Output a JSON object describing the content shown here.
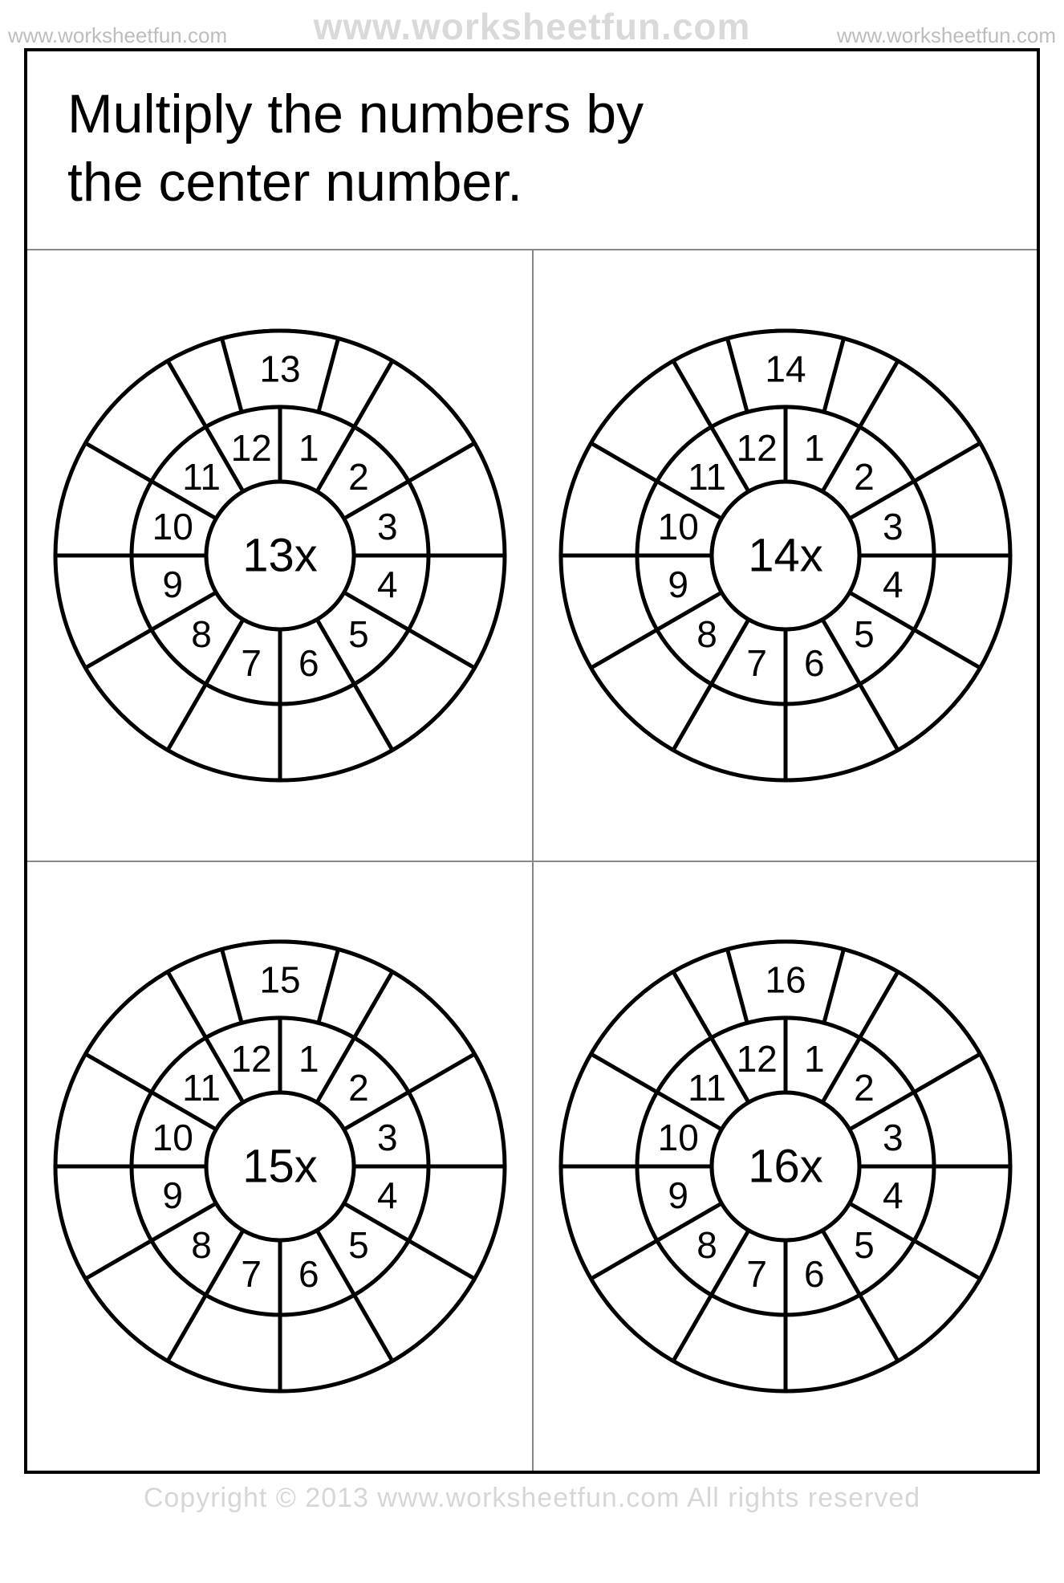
{
  "watermark": {
    "left": "www.worksheetfun.com",
    "center": "www.worksheetfun.com",
    "right": "www.worksheetfun.com",
    "footer": "Copyright © 2013 www.worksheetfun.com All rights reserved"
  },
  "title": {
    "line1": "Multiply the numbers by",
    "line2": "the center number."
  },
  "wheel_style": {
    "outer_radius": 280,
    "mid_radius": 185,
    "inner_radius": 92,
    "stroke": "#000000",
    "stroke_width": 5,
    "segments": 12,
    "inner_fontsize": 46,
    "center_fontsize": 58,
    "start_label_fontsize": 46,
    "svg_size": 600,
    "background": "#ffffff"
  },
  "wheels": [
    {
      "center_label": "13x",
      "start_label": "13",
      "inner_numbers": [
        "1",
        "2",
        "3",
        "4",
        "5",
        "6",
        "7",
        "8",
        "9",
        "10",
        "11",
        "12"
      ]
    },
    {
      "center_label": "14x",
      "start_label": "14",
      "inner_numbers": [
        "1",
        "2",
        "3",
        "4",
        "5",
        "6",
        "7",
        "8",
        "9",
        "10",
        "11",
        "12"
      ]
    },
    {
      "center_label": "15x",
      "start_label": "15",
      "inner_numbers": [
        "1",
        "2",
        "3",
        "4",
        "5",
        "6",
        "7",
        "8",
        "9",
        "10",
        "11",
        "12"
      ]
    },
    {
      "center_label": "16x",
      "start_label": "16",
      "inner_numbers": [
        "1",
        "2",
        "3",
        "4",
        "5",
        "6",
        "7",
        "8",
        "9",
        "10",
        "11",
        "12"
      ]
    }
  ]
}
